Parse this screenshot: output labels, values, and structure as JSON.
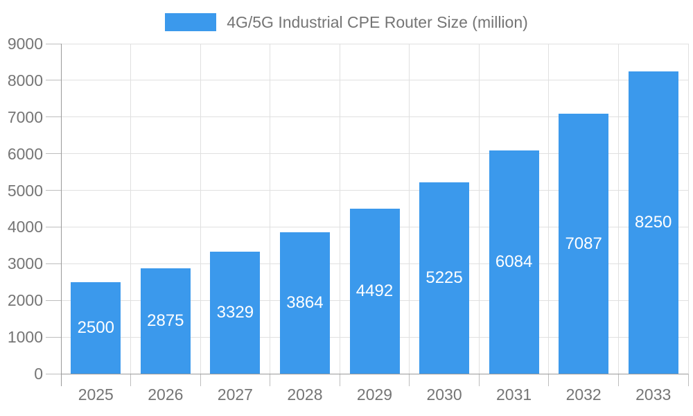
{
  "chart_data": {
    "type": "bar",
    "title": "4G/5G Industrial CPE Router Size (million)",
    "categories": [
      "2025",
      "2026",
      "2027",
      "2028",
      "2029",
      "2030",
      "2031",
      "2032",
      "2033"
    ],
    "series": [
      {
        "name": "4G/5G Industrial CPE Router Size (million)",
        "values": [
          2500,
          2875,
          3329,
          3864,
          4492,
          5225,
          6084,
          7087,
          8250
        ]
      }
    ],
    "xlabel": "",
    "ylabel": "",
    "ylim": [
      0,
      9000
    ],
    "yticks": [
      0,
      1000,
      2000,
      3000,
      4000,
      5000,
      6000,
      7000,
      8000,
      9000
    ],
    "grid": true,
    "legend_position": "top-center",
    "value_label_position": "inside-center",
    "colors": {
      "bar": "#3B99EC",
      "value_label": "#FFFFFF",
      "axis_text": "#757575",
      "axis_line": "#999999",
      "tick": "#BDBDBD",
      "gridline": "#E0E0E0",
      "background": "#FFFFFF"
    }
  }
}
